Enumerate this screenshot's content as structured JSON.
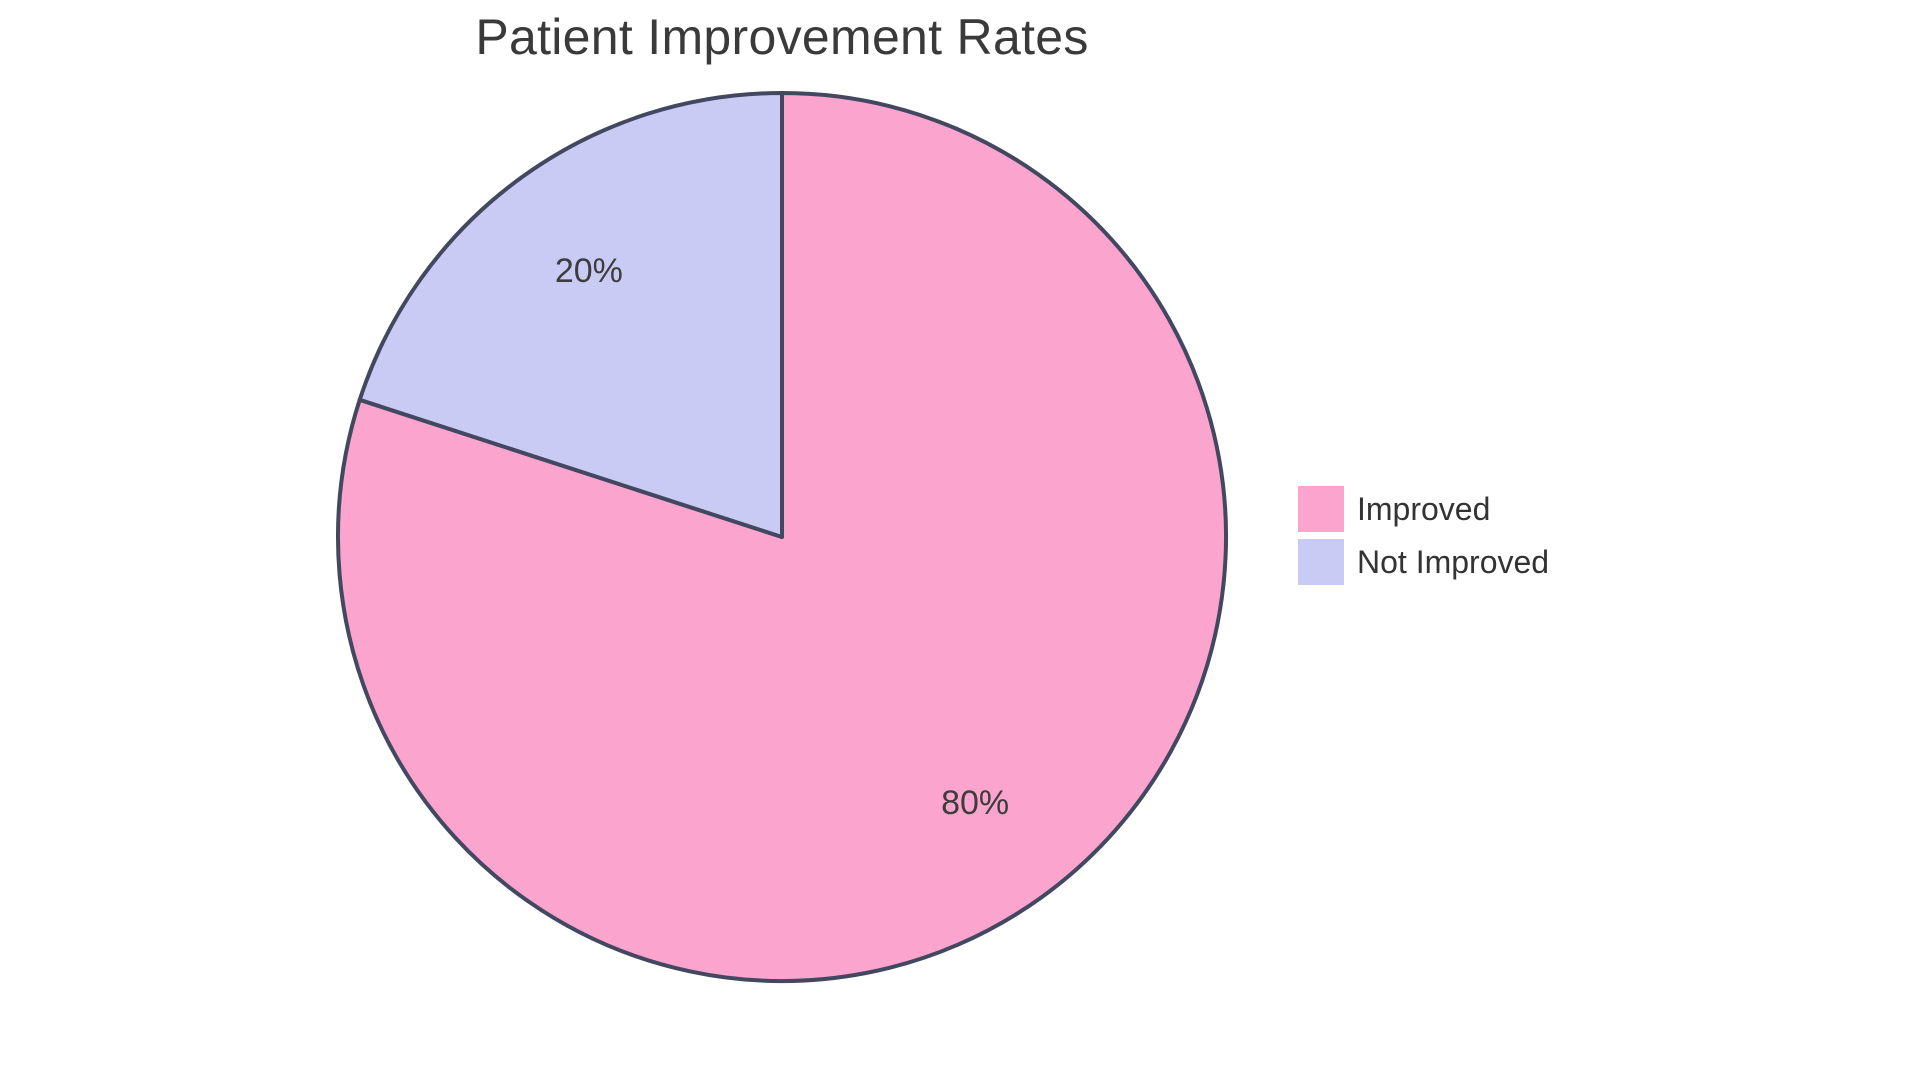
{
  "page": {
    "background": "#ffffff"
  },
  "chart_data": {
    "type": "pie",
    "title": "Patient Improvement Rates",
    "series": [
      {
        "name": "Improved",
        "value": 80,
        "pct_label": "80%",
        "color": "#FAA4CE"
      },
      {
        "name": "Not Improved",
        "value": 20,
        "pct_label": "20%",
        "color": "#CACBF5"
      }
    ],
    "start_angle_deg": 0,
    "direction": "clockwise",
    "slice_border_color": "#434861",
    "slice_border_width": 4,
    "label_color": "#3d3d3d",
    "title_color": "#3a3a3a",
    "legend_position": "right",
    "legend_text_color": "#333333"
  }
}
